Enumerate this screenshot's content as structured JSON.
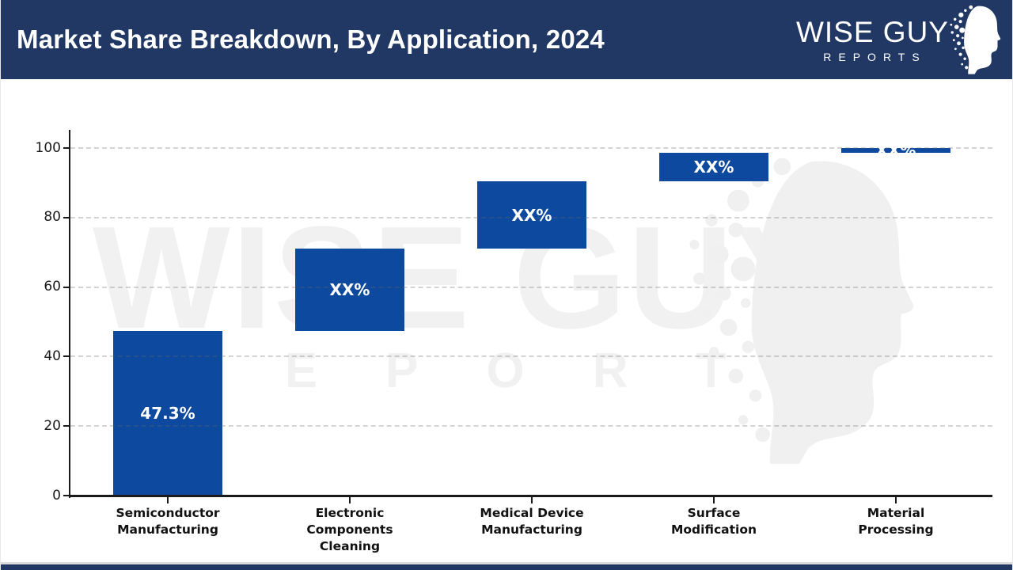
{
  "colors": {
    "header_bg": "#213865",
    "bar": "#0d4a9f",
    "bar_label": "#ffffff",
    "grid": "#d8d8d8",
    "axis": "#1a1a1a",
    "watermark": "#f1f1f1",
    "footer_bar": "#213865"
  },
  "header": {
    "title": "Market Share Breakdown, By Application, 2024",
    "logo": {
      "line1": "WISE GUY",
      "line2": "REPORTS",
      "icon": "face-profile-dots"
    }
  },
  "watermark": {
    "line1": "WISE GUY",
    "line2": "REPORTS"
  },
  "chart_data": {
    "type": "bar",
    "variant": "waterfall",
    "title": "Market Share Breakdown, By Application, 2024",
    "xlabel": "",
    "ylabel": "",
    "ylim": [
      0,
      100
    ],
    "yticks": [
      0,
      20,
      40,
      60,
      80,
      100
    ],
    "grid": "horizontal-dashed",
    "legend": "none",
    "categories": [
      "Semiconductor\nManufacturing",
      "Electronic\nComponents\nCleaning",
      "Medical Device\nManufacturing",
      "Surface\nModification",
      "Material\nProcessing"
    ],
    "segments": [
      {
        "category": "Semiconductor Manufacturing",
        "label": "47.3%",
        "start": 0,
        "end": 47.3
      },
      {
        "category": "Electronic Components Cleaning",
        "label": "XX%",
        "start": 47.3,
        "end": 71.0
      },
      {
        "category": "Medical Device Manufacturing",
        "label": "XX%",
        "start": 71.0,
        "end": 90.5
      },
      {
        "category": "Surface Modification",
        "label": "XX%",
        "start": 90.5,
        "end": 98.6
      },
      {
        "category": "Material Processing",
        "label": "XX%",
        "start": 98.6,
        "end": 100.0
      }
    ]
  }
}
